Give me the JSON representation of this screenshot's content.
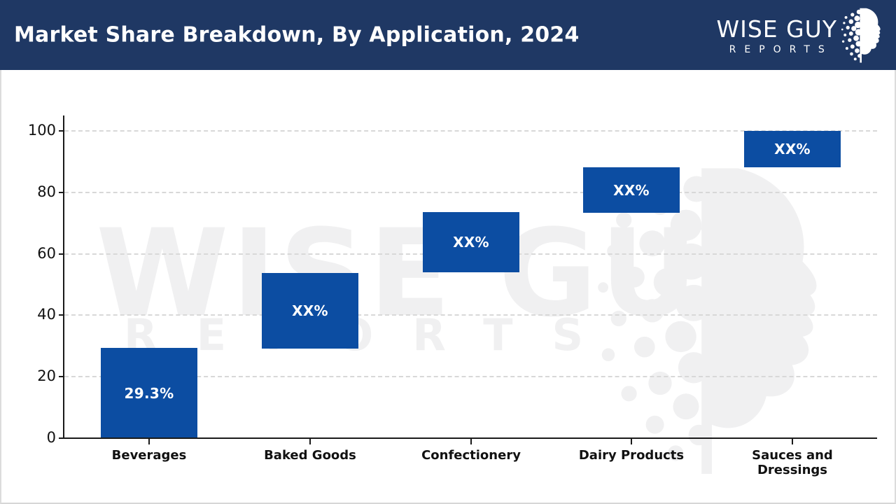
{
  "header": {
    "title": "Market Share Breakdown, By Application, 2024",
    "logo": {
      "name": "WISE GUY",
      "subname": "REPORTS"
    }
  },
  "watermark": {
    "line1": "WISE GUY",
    "line2": "REPORTS"
  },
  "chart_data": {
    "type": "bar",
    "subtype": "waterfall",
    "title": "Market Share Breakdown, By Application, 2024",
    "categories": [
      "Beverages",
      "Baked Goods",
      "Confectionery",
      "Dairy Products",
      "Sauces and Dressings"
    ],
    "segments": [
      {
        "category": "Beverages",
        "start": 0,
        "end": 29.3,
        "label": "29.3%"
      },
      {
        "category": "Baked Goods",
        "start": 29.3,
        "end": 53.8,
        "label": "XX%"
      },
      {
        "category": "Confectionery",
        "start": 53.8,
        "end": 73.5,
        "label": "XX%"
      },
      {
        "category": "Dairy Products",
        "start": 73.5,
        "end": 88.2,
        "label": "XX%"
      },
      {
        "category": "Sauces and Dressings",
        "start": 88.2,
        "end": 100,
        "label": "XX%"
      }
    ],
    "yticks": [
      0,
      20,
      40,
      60,
      80,
      100
    ],
    "ylim": [
      0,
      105
    ],
    "xlabel": "",
    "ylabel": "",
    "grid": true,
    "legend": false,
    "bar_color": "#0c4da2",
    "value_label_color": "#ffffff",
    "header_color": "#1f3864"
  }
}
